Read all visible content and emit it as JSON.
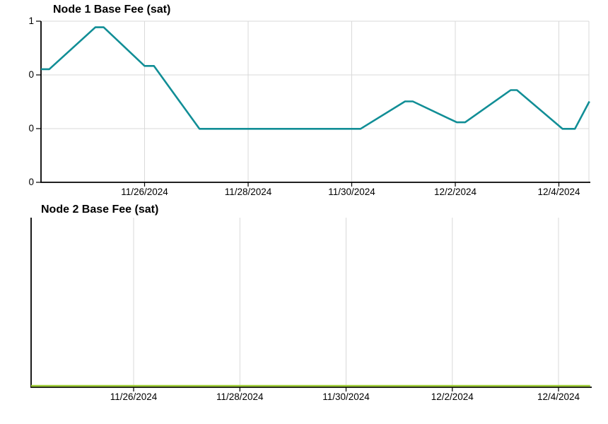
{
  "page": {
    "background_hex": "#FFFFFF",
    "grid_color_hex": "#D9D9D9",
    "axis_color_hex": "#000000"
  },
  "chart_data": [
    {
      "type": "line",
      "title": "Node 1 Base Fee (sat)",
      "x_tick_labels": [
        "11/26/2024",
        "11/28/2024",
        "11/30/2024",
        "12/2/2024",
        "12/4/2024"
      ],
      "y_tick_labels_top_to_bottom": [
        "1",
        "0",
        "0",
        "0"
      ],
      "ylim": [
        0,
        1
      ],
      "grid": true,
      "legend": "none",
      "line_color": "#118E96",
      "series": [
        {
          "name": "Node 1 Base Fee",
          "points_t_days_v_sat": [
            [
              0,
              0.7
            ],
            [
              0.16,
              0.7
            ],
            [
              1.05,
              0.96
            ],
            [
              1.21,
              0.96
            ],
            [
              2.0,
              0.72
            ],
            [
              2.18,
              0.72
            ],
            [
              3.06,
              0.33
            ],
            [
              6.17,
              0.33
            ],
            [
              7.03,
              0.5
            ],
            [
              7.18,
              0.5
            ],
            [
              8.03,
              0.37
            ],
            [
              8.19,
              0.37
            ],
            [
              9.07,
              0.57
            ],
            [
              9.19,
              0.57
            ],
            [
              10.07,
              0.33
            ],
            [
              10.31,
              0.33
            ],
            [
              10.59,
              0.5
            ]
          ]
        }
      ]
    },
    {
      "type": "line",
      "title": "Node 2 Base Fee (sat)",
      "x_tick_labels": [
        "11/26/2024",
        "11/28/2024",
        "11/30/2024",
        "12/2/2024",
        "12/4/2024"
      ],
      "y_tick_labels_top_to_bottom": [],
      "ylim": [
        0,
        1
      ],
      "grid": true,
      "legend": "none",
      "line_color": "#9CCB33",
      "series": [
        {
          "name": "Node 2 Base Fee",
          "points_t_days_v_sat": [
            [
              0,
              0
            ],
            [
              10.53,
              0
            ]
          ]
        }
      ]
    }
  ]
}
